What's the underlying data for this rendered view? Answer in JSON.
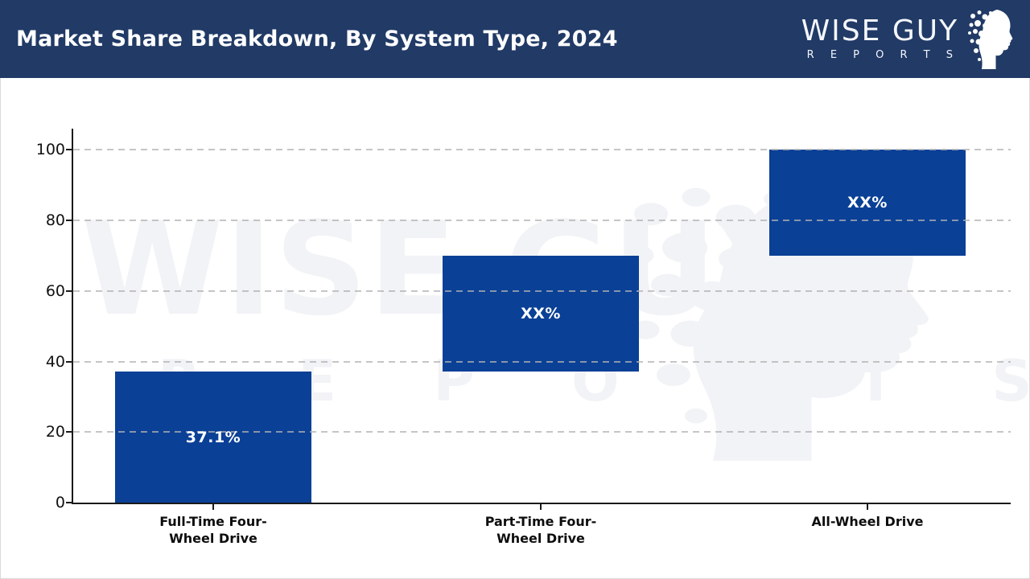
{
  "header": {
    "title": "Market Share Breakdown, By System Type, 2024",
    "logo_line1": "WISE GUY",
    "logo_line2": "R E P O R T S"
  },
  "watermark": {
    "line1": "WISE GUY",
    "line2": "R E P O R T S"
  },
  "chart_data": {
    "type": "bar",
    "subtype": "waterfall-stacked-to-100",
    "title": "Market Share Breakdown, By System Type, 2024",
    "categories": [
      [
        "Full-Time Four-",
        "Wheel Drive"
      ],
      [
        "Part-Time Four-",
        "Wheel Drive"
      ],
      [
        "All-Wheel Drive"
      ]
    ],
    "series": [
      {
        "name": "Full-Time Four-Wheel Drive",
        "start": 0,
        "end": 37.1,
        "label": "37.1%"
      },
      {
        "name": "Part-Time Four-Wheel Drive",
        "start": 37.1,
        "end": 70,
        "label": "XX%"
      },
      {
        "name": "All-Wheel Drive",
        "start": 70,
        "end": 100,
        "label": "XX%"
      }
    ],
    "yticks": [
      0,
      20,
      40,
      60,
      80,
      100
    ],
    "ylim": [
      0,
      106
    ],
    "grid": {
      "axis": "y",
      "style": "dashed",
      "drawn_above_bars": true
    },
    "legend": "none"
  },
  "colors": {
    "header_bg": "#213a66",
    "bar": "#0a4096",
    "bar_label": "#ffffff",
    "axis": "#1a1a1a",
    "gridline": "#b2b2b2",
    "watermark": "#f2f3f6",
    "frame_border": "#d9d9d9"
  }
}
